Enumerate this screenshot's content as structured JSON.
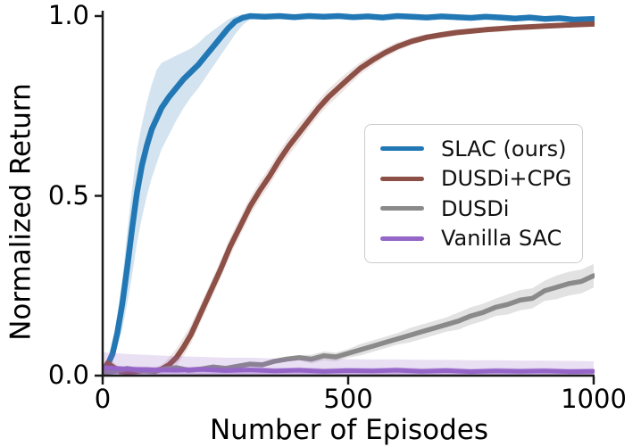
{
  "chart_data": {
    "type": "line",
    "xlabel": "Number of Episodes",
    "ylabel": "Normalized Return",
    "xlim": [
      0,
      1000
    ],
    "ylim": [
      0,
      1.015
    ],
    "xticks": [
      0,
      500,
      1000
    ],
    "xtick_labels": [
      "0",
      "500",
      "1000"
    ],
    "yticks": [
      0.0,
      0.5,
      1.0
    ],
    "ytick_labels": [
      "0.0",
      "0.5",
      "1.0"
    ],
    "grid": false,
    "legend_position": "center-right",
    "axis_color": "#1a1a1a",
    "series": [
      {
        "id": "slac",
        "name": "SLAC (ours)",
        "color": "#2278b5",
        "line_width": 6.5,
        "band_opacity": 0.2,
        "x": [
          0,
          10,
          20,
          30,
          40,
          50,
          60,
          70,
          80,
          90,
          100,
          110,
          120,
          135,
          150,
          165,
          180,
          195,
          210,
          225,
          240,
          255,
          270,
          285,
          300,
          330,
          360,
          390,
          420,
          450,
          480,
          510,
          540,
          570,
          600,
          630,
          660,
          690,
          720,
          750,
          780,
          810,
          840,
          870,
          900,
          930,
          960,
          1000
        ],
        "y": [
          0.015,
          0.03,
          0.06,
          0.12,
          0.2,
          0.3,
          0.41,
          0.51,
          0.585,
          0.64,
          0.685,
          0.715,
          0.745,
          0.775,
          0.8,
          0.825,
          0.845,
          0.865,
          0.89,
          0.915,
          0.94,
          0.965,
          0.985,
          0.995,
          1.0,
          0.998,
          1.0,
          0.997,
          1.0,
          0.998,
          1.0,
          0.997,
          0.999,
          0.996,
          1.0,
          0.998,
          0.996,
          0.999,
          0.997,
          0.995,
          0.998,
          0.996,
          0.993,
          0.996,
          0.992,
          0.994,
          0.99,
          0.992
        ],
        "band_lo": [
          0.01,
          0.02,
          0.04,
          0.08,
          0.13,
          0.2,
          0.28,
          0.37,
          0.44,
          0.5,
          0.55,
          0.59,
          0.63,
          0.67,
          0.71,
          0.745,
          0.775,
          0.8,
          0.83,
          0.86,
          0.89,
          0.92,
          0.95,
          0.975,
          0.99,
          0.994,
          0.996,
          0.993,
          0.996,
          0.994,
          0.996,
          0.993,
          0.995,
          0.992,
          0.996,
          0.994,
          0.992,
          0.995,
          0.993,
          0.991,
          0.994,
          0.992,
          0.989,
          0.992,
          0.988,
          0.99,
          0.986,
          0.988
        ],
        "band_hi": [
          0.02,
          0.05,
          0.09,
          0.17,
          0.27,
          0.4,
          0.52,
          0.63,
          0.7,
          0.76,
          0.81,
          0.85,
          0.87,
          0.88,
          0.89,
          0.9,
          0.91,
          0.925,
          0.945,
          0.96,
          0.975,
          0.99,
          1.0,
          1.005,
          1.007,
          1.003,
          1.004,
          1.002,
          1.004,
          1.003,
          1.004,
          1.002,
          1.003,
          1.001,
          1.004,
          1.003,
          1.001,
          1.003,
          1.002,
          1.0,
          1.003,
          1.001,
          0.999,
          1.001,
          0.999,
          1.0,
          0.996,
          0.997
        ]
      },
      {
        "id": "dusdi-cpg",
        "name": "DUSDi+CPG",
        "color": "#8d5047",
        "line_width": 6,
        "band_opacity": 0.15,
        "x": [
          0,
          10,
          20,
          35,
          50,
          70,
          90,
          105,
          120,
          135,
          150,
          165,
          180,
          200,
          220,
          240,
          260,
          280,
          300,
          320,
          340,
          360,
          380,
          400,
          420,
          440,
          460,
          480,
          500,
          525,
          550,
          575,
          600,
          630,
          660,
          690,
          720,
          750,
          780,
          810,
          840,
          870,
          900,
          930,
          960,
          1000
        ],
        "y": [
          0.01,
          0.035,
          0.025,
          0.012,
          0.01,
          0.012,
          0.015,
          0.012,
          0.018,
          0.03,
          0.05,
          0.08,
          0.115,
          0.175,
          0.235,
          0.295,
          0.36,
          0.415,
          0.47,
          0.515,
          0.555,
          0.6,
          0.64,
          0.675,
          0.71,
          0.745,
          0.775,
          0.8,
          0.825,
          0.855,
          0.878,
          0.898,
          0.915,
          0.93,
          0.941,
          0.948,
          0.954,
          0.958,
          0.962,
          0.965,
          0.968,
          0.97,
          0.972,
          0.974,
          0.976,
          0.978
        ],
        "band_lo": [
          0.002,
          0.02,
          0.012,
          0.003,
          0.002,
          0.003,
          0.005,
          0.003,
          0.007,
          0.012,
          0.028,
          0.055,
          0.09,
          0.15,
          0.21,
          0.27,
          0.335,
          0.39,
          0.445,
          0.49,
          0.53,
          0.575,
          0.615,
          0.65,
          0.688,
          0.723,
          0.753,
          0.778,
          0.805,
          0.838,
          0.863,
          0.885,
          0.903,
          0.92,
          0.932,
          0.94,
          0.946,
          0.951,
          0.955,
          0.958,
          0.961,
          0.963,
          0.965,
          0.968,
          0.97,
          0.972
        ],
        "band_hi": [
          0.02,
          0.05,
          0.04,
          0.022,
          0.02,
          0.022,
          0.026,
          0.022,
          0.03,
          0.05,
          0.075,
          0.108,
          0.142,
          0.2,
          0.26,
          0.32,
          0.385,
          0.44,
          0.495,
          0.54,
          0.58,
          0.625,
          0.665,
          0.7,
          0.732,
          0.767,
          0.797,
          0.822,
          0.845,
          0.872,
          0.893,
          0.911,
          0.927,
          0.94,
          0.95,
          0.956,
          0.962,
          0.965,
          0.969,
          0.972,
          0.975,
          0.977,
          0.979,
          0.98,
          0.982,
          0.984
        ]
      },
      {
        "id": "dusdi",
        "name": "DUSDi",
        "color": "#8a8a8a",
        "line_width": 5.5,
        "band_opacity": 0.25,
        "x": [
          0,
          25,
          50,
          75,
          100,
          125,
          150,
          175,
          200,
          225,
          250,
          275,
          300,
          325,
          350,
          375,
          400,
          425,
          450,
          475,
          500,
          525,
          550,
          575,
          600,
          625,
          650,
          675,
          700,
          725,
          750,
          775,
          800,
          825,
          850,
          875,
          900,
          925,
          950,
          975,
          1000
        ],
        "y": [
          0.008,
          0.012,
          0.02,
          0.014,
          0.012,
          0.018,
          0.022,
          0.015,
          0.018,
          0.024,
          0.02,
          0.026,
          0.032,
          0.03,
          0.04,
          0.046,
          0.05,
          0.046,
          0.055,
          0.052,
          0.062,
          0.072,
          0.082,
          0.092,
          0.102,
          0.112,
          0.122,
          0.132,
          0.142,
          0.152,
          0.166,
          0.176,
          0.19,
          0.198,
          0.21,
          0.215,
          0.236,
          0.246,
          0.256,
          0.262,
          0.278
        ],
        "band_lo": [
          0.001,
          0.005,
          0.013,
          0.007,
          0.005,
          0.011,
          0.015,
          0.008,
          0.011,
          0.017,
          0.013,
          0.019,
          0.025,
          0.023,
          0.033,
          0.039,
          0.043,
          0.034,
          0.043,
          0.04,
          0.05,
          0.056,
          0.066,
          0.076,
          0.086,
          0.092,
          0.102,
          0.112,
          0.122,
          0.128,
          0.142,
          0.152,
          0.166,
          0.17,
          0.182,
          0.187,
          0.208,
          0.213,
          0.223,
          0.229,
          0.245
        ],
        "band_hi": [
          0.015,
          0.019,
          0.027,
          0.021,
          0.019,
          0.025,
          0.029,
          0.022,
          0.025,
          0.031,
          0.027,
          0.033,
          0.039,
          0.037,
          0.047,
          0.053,
          0.057,
          0.058,
          0.067,
          0.064,
          0.074,
          0.088,
          0.098,
          0.108,
          0.118,
          0.132,
          0.142,
          0.152,
          0.162,
          0.176,
          0.19,
          0.2,
          0.214,
          0.226,
          0.238,
          0.243,
          0.264,
          0.279,
          0.289,
          0.295,
          0.311
        ]
      },
      {
        "id": "vanilla-sac",
        "name": "Vanilla SAC",
        "color": "#9565c8",
        "line_width": 5,
        "band_opacity": 0.2,
        "underfill": true,
        "underfill_opacity": 0.35,
        "x": [
          0,
          50,
          100,
          150,
          200,
          250,
          300,
          350,
          400,
          450,
          500,
          550,
          600,
          650,
          700,
          750,
          800,
          850,
          900,
          950,
          1000
        ],
        "y": [
          0.022,
          0.018,
          0.016,
          0.015,
          0.017,
          0.014,
          0.016,
          0.013,
          0.015,
          0.012,
          0.014,
          0.013,
          0.015,
          0.012,
          0.014,
          0.011,
          0.013,
          0.012,
          0.013,
          0.011,
          0.012
        ],
        "band_lo": [
          0.002,
          0.002,
          0.002,
          0.002,
          0.002,
          0.002,
          0.002,
          0.002,
          0.002,
          0.002,
          0.002,
          0.002,
          0.002,
          0.002,
          0.002,
          0.002,
          0.002,
          0.002,
          0.002,
          0.002,
          0.002
        ],
        "band_hi": [
          0.065,
          0.06,
          0.057,
          0.054,
          0.052,
          0.05,
          0.05,
          0.048,
          0.047,
          0.046,
          0.046,
          0.045,
          0.045,
          0.044,
          0.044,
          0.043,
          0.043,
          0.042,
          0.042,
          0.041,
          0.04
        ]
      }
    ]
  }
}
